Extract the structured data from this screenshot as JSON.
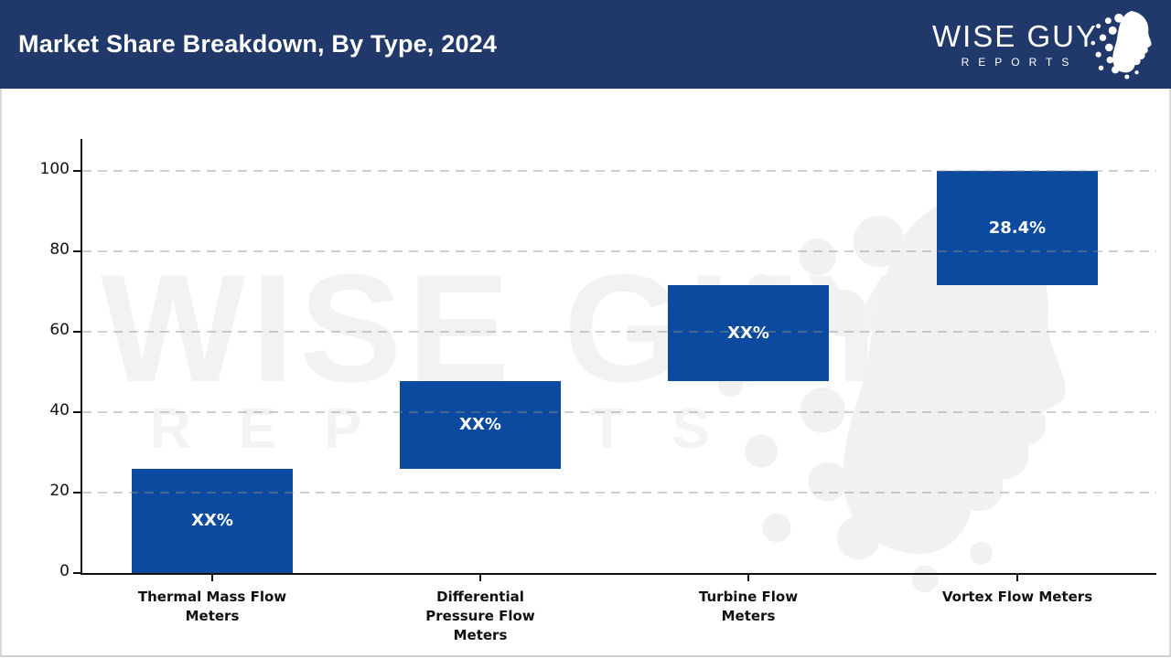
{
  "header": {
    "title": "Market Share Breakdown, By Type, 2024",
    "logo": {
      "line1": "WISE GUY",
      "line2": "REPORTS"
    },
    "background_color": "#21386b"
  },
  "watermark": {
    "line1": "WISE GUY",
    "line2": "REPORTS"
  },
  "chart_data": {
    "type": "bar",
    "subtype": "floating-waterfall",
    "title": "Market Share Breakdown, By Type, 2024",
    "categories": [
      "Thermal Mass Flow Meters",
      "Differential Pressure Flow Meters",
      "Turbine Flow Meters",
      "Vortex Flow Meters"
    ],
    "category_display_lines": [
      [
        "Thermal Mass Flow",
        "Meters"
      ],
      [
        "Differential",
        "Pressure Flow",
        "Meters"
      ],
      [
        "Turbine Flow",
        "Meters"
      ],
      [
        "Vortex Flow Meters"
      ]
    ],
    "segments": [
      {
        "category": "Thermal Mass Flow Meters",
        "start": 0,
        "end": 26,
        "label": "XX%"
      },
      {
        "category": "Differential Pressure Flow Meters",
        "start": 26,
        "end": 47.7,
        "label": "XX%"
      },
      {
        "category": "Turbine Flow Meters",
        "start": 47.7,
        "end": 71.6,
        "label": "XX%"
      },
      {
        "category": "Vortex Flow Meters",
        "start": 71.6,
        "end": 100,
        "label": "28.4%"
      }
    ],
    "ylim": [
      0,
      100
    ],
    "yticks": [
      0,
      20,
      40,
      60,
      80,
      100
    ],
    "grid": "horizontal-dashed",
    "legend": "none",
    "bar_color": "#0c4aa0",
    "bar_label_color": "#ffffff",
    "axis_color": "#111111",
    "gridline_color": "#d5d5d5"
  }
}
